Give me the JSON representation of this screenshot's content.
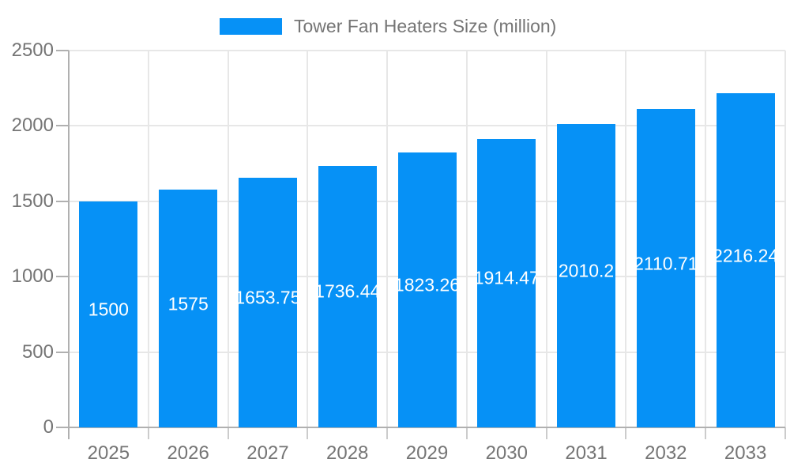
{
  "chart_data": {
    "type": "bar",
    "title": "Tower Fan Heaters Size (million)",
    "legend_position": "top",
    "categories": [
      "2025",
      "2026",
      "2027",
      "2028",
      "2029",
      "2030",
      "2031",
      "2032",
      "2033"
    ],
    "series": [
      {
        "name": "Tower Fan Heaters Size (million)",
        "values": [
          1500,
          1575,
          1653.75,
          1736.44,
          1823.26,
          1914.47,
          2010.2,
          2110.71,
          2216.24
        ]
      }
    ],
    "value_labels": [
      "1500",
      "1575",
      "1653.75",
      "1736.44",
      "1823.26",
      "1914.47",
      "2010.2",
      "2110.71",
      "2216.24"
    ],
    "xlabel": "",
    "ylabel": "",
    "ylim": [
      0,
      2500
    ],
    "yticks": [
      "0",
      "500",
      "1000",
      "1500",
      "2000",
      "2500"
    ],
    "grid": true,
    "colors": {
      "bar": "#0691F6",
      "grid": "#e7e7e7",
      "axis": "#b0b0b0",
      "minor_tick": "#cccccc",
      "tick_label": "#757575",
      "value_label": "#ffffff",
      "background": "#ffffff"
    }
  }
}
